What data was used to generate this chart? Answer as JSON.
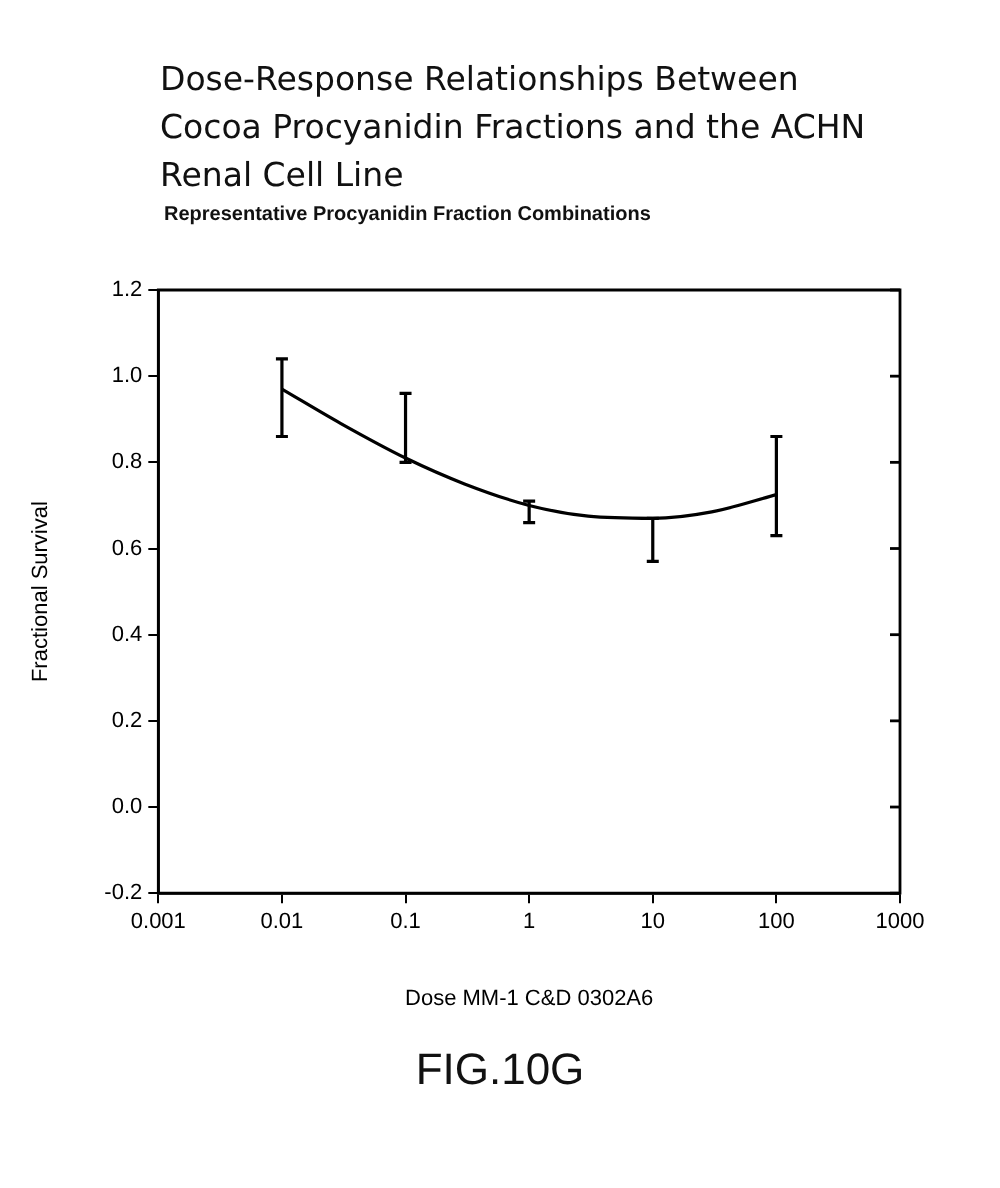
{
  "chart_data": {
    "type": "line",
    "title": "Dose-Response Relationships Between Cocoa Procyanidin Fractions and the ACHN Renal Cell Line",
    "subtitle": "Representative Procyanidin Fraction Combinations",
    "xlabel": "Dose MM-1 C&D 0302A6",
    "ylabel": "Fractional Survival",
    "annotations": [
      "FIG.10G"
    ],
    "x": [
      0.01,
      0.03,
      0.1,
      0.3,
      1,
      3,
      10,
      30,
      100
    ],
    "series": [
      {
        "color": "#000000",
        "values": [
          0.97,
          0.89,
          0.81,
          0.75,
          0.7,
          0.675,
          0.67,
          0.685,
          0.725
        ],
        "errors": [
          [
            0.86,
            1.04
          ],
          null,
          [
            0.8,
            0.96
          ],
          null,
          [
            0.66,
            0.71
          ],
          null,
          [
            0.57,
            0.67
          ],
          null,
          [
            0.63,
            0.86
          ]
        ]
      }
    ],
    "log": "x",
    "xlim": [
      0.001,
      1000
    ],
    "xticks": [
      0.001,
      0.01,
      0.1,
      1,
      10,
      100,
      1000
    ],
    "ylim": [
      -0.2,
      1.2
    ],
    "yticks": [
      -0.2,
      {
        "value": 0,
        "label": "0.0"
      },
      0.2,
      0.4,
      0.6,
      0.8,
      {
        "value": 1,
        "label": "1.0"
      },
      1.2
    ],
    "grid": false,
    "legend": false,
    "marker": "none",
    "line_style": "solid"
  }
}
